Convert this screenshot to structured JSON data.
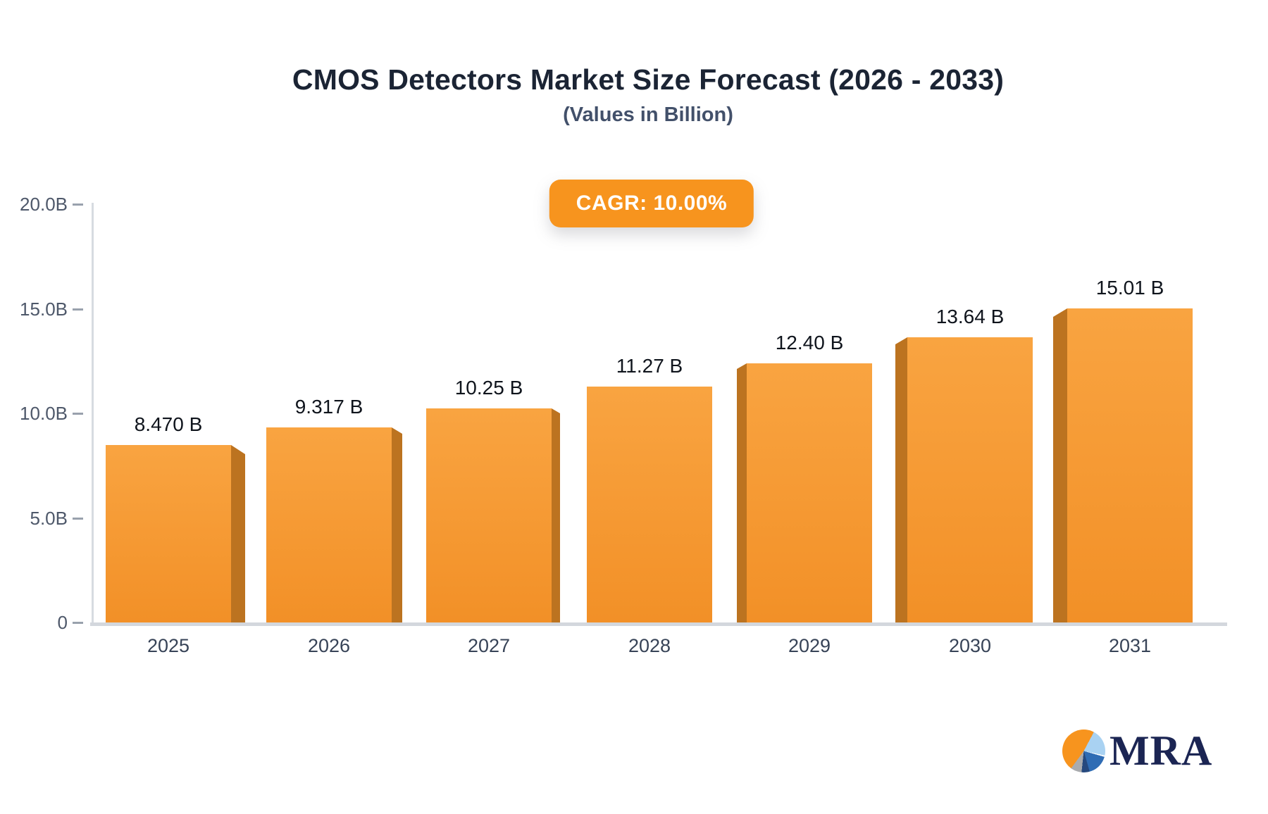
{
  "header": {
    "title": "CMOS Detectors Market Size Forecast (2026 - 2033)",
    "subtitle": "(Values in Billion)",
    "cagr_badge": "CAGR: 10.00%"
  },
  "footer": {
    "logo_text": "MRA",
    "logo_icon": "pie-chart-icon"
  },
  "chart_data": {
    "type": "bar",
    "title": "CMOS Detectors Market Size Forecast (2026 - 2033)",
    "subtitle": "(Values in Billion)",
    "annotation": "CAGR: 10.00%",
    "categories": [
      "2025",
      "2026",
      "2027",
      "2028",
      "2029",
      "2030",
      "2031"
    ],
    "values": [
      8.47,
      9.317,
      10.25,
      11.27,
      12.4,
      13.64,
      15.01
    ],
    "value_labels": [
      "8.470 B",
      "9.317 B",
      "10.25 B",
      "11.27 B",
      "12.40 B",
      "13.64 B",
      "15.01 B"
    ],
    "xlabel": "",
    "ylabel": "",
    "ylim": [
      0,
      20
    ],
    "yticks": {
      "values": [
        20,
        15,
        10,
        5,
        0
      ],
      "labels": [
        "20.0B",
        "15.0B",
        "10.0B",
        "5.0B",
        "0"
      ]
    },
    "grid": false,
    "legend": false,
    "bar_style": "3d-perspective-toward-center",
    "colors": {
      "bar_top": "#f9a441",
      "bar_bottom": "#f29027",
      "bar_side": "#bc7320",
      "badge_bg": "#f7941e",
      "badge_text": "#ffffff",
      "title_text": "#1b2434",
      "axis_text": "#4e586a",
      "brand_navy": "#1b2553"
    }
  }
}
